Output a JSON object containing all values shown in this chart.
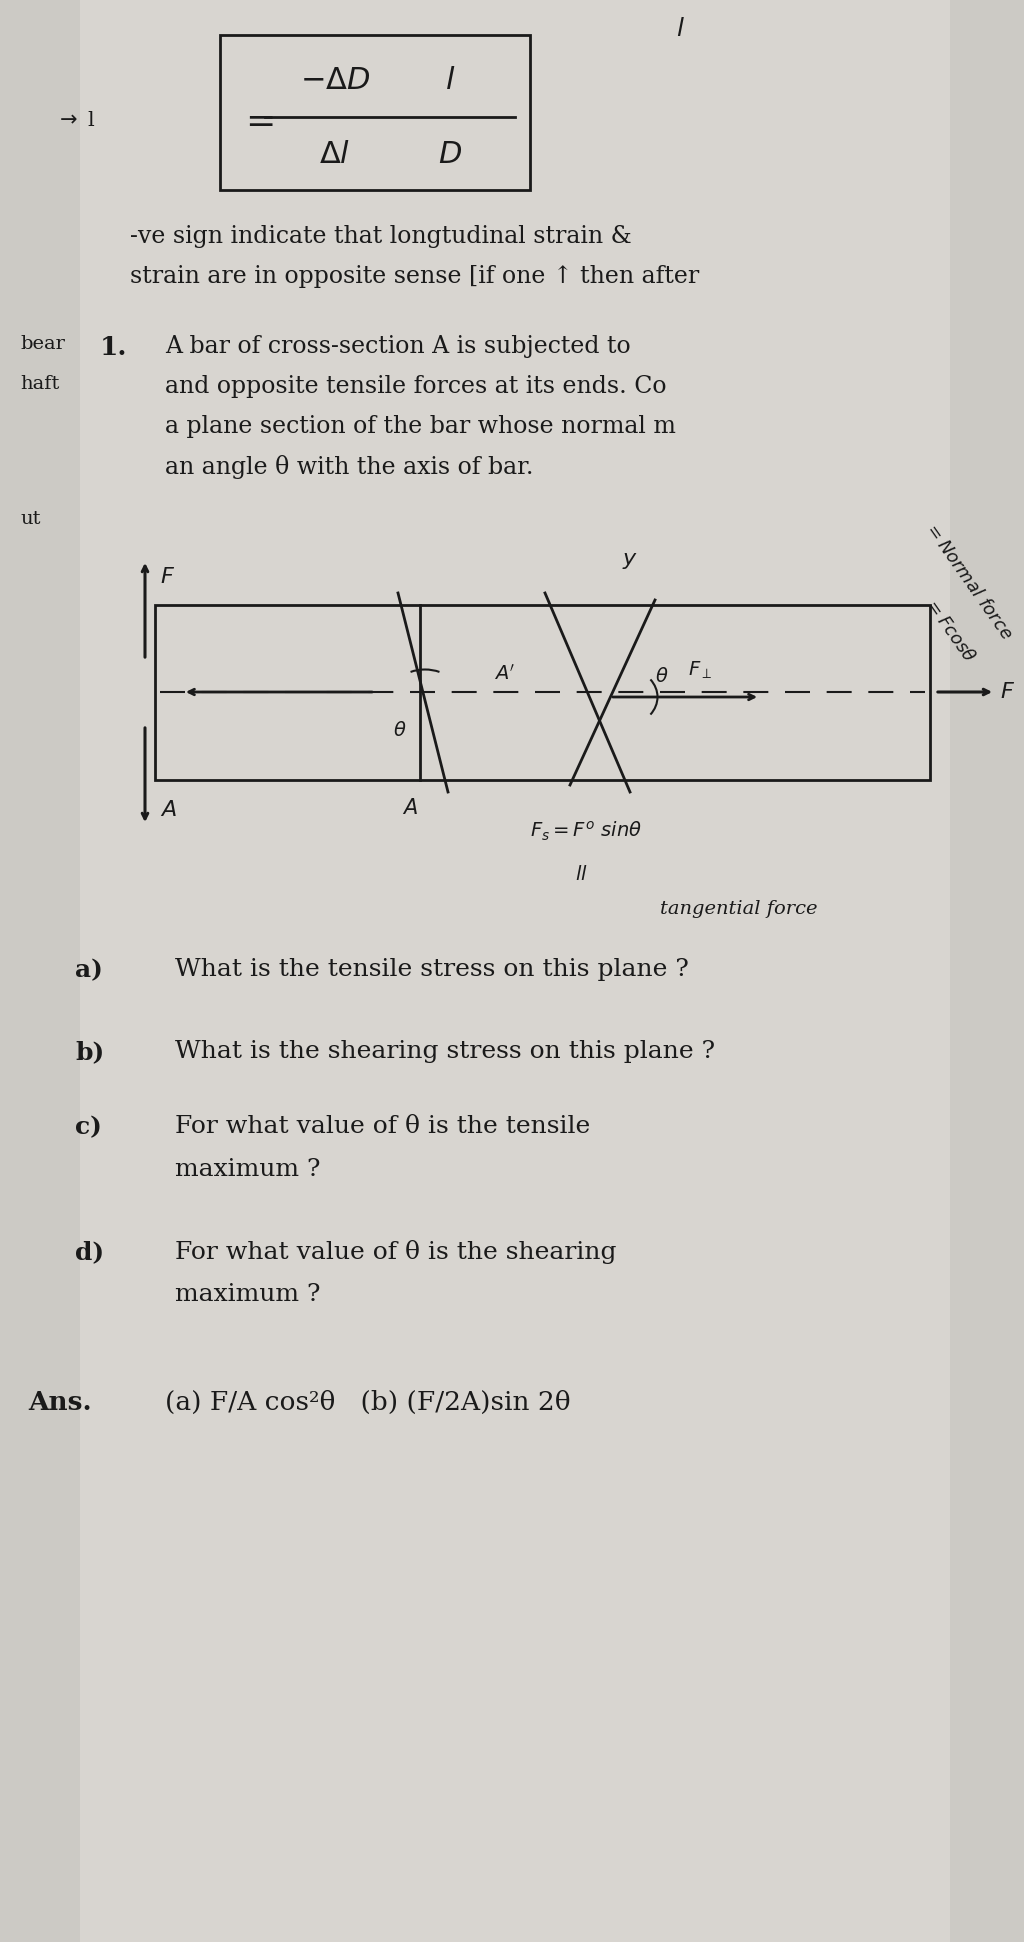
{
  "bg_color": "#cccac5",
  "text_color": "#1a1a1a",
  "ve_sign_text": "-ve sign indicate that longtudinal strain & ",
  "ve_sign_text2": "strain are in opposite sense [if one ↑ then after",
  "problem_num": "1.",
  "problem_text1": "A bar of cross-section A is subjected to",
  "problem_text2": "and opposite tensile forces at its ends. Co",
  "problem_text3": "a plane section of the bar whose normal m",
  "problem_text4": "an angle θ with the axis of bar.",
  "label_y": "y",
  "label_normal": "= Normal force",
  "label_fcostheta": "=Fcosθ",
  "qa_letter": "a)",
  "qa_text": "What is the tensile stress on this plane ?",
  "qb_letter": "b)",
  "qb_text": "What is the shearing stress on this plane ?",
  "qc_letter": "c)",
  "qc_text1": "For what value of θ is the tensile",
  "qc_text2": "maximum ?",
  "qd_letter": "d)",
  "qd_text1": "For what value of θ is the shearing",
  "qd_text2": "maximum ?",
  "ans_label": "Ans.",
  "ans_a": "(a) F/A cos²θ",
  "ans_b": "(b) (F/2A)sin 2θ"
}
